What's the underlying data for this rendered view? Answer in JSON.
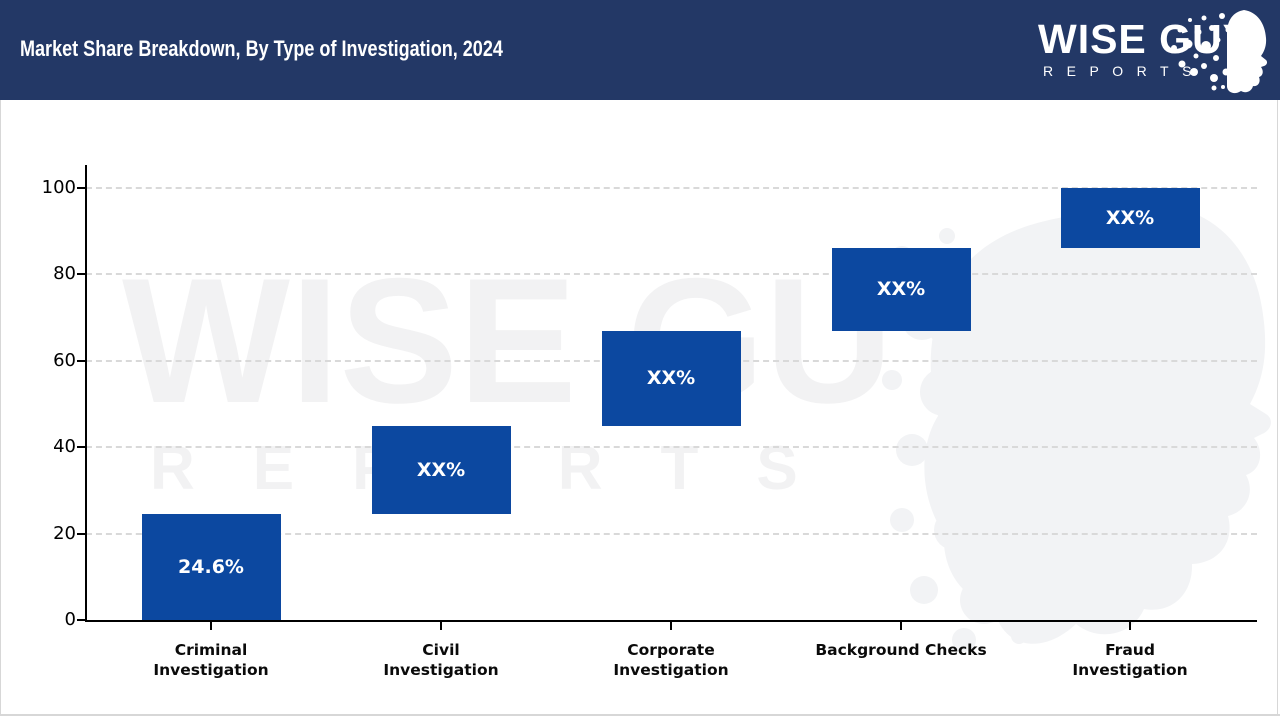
{
  "header": {
    "title": "Market Share Breakdown, By Type of Investigation, 2024",
    "logo": {
      "line1": "WISE GUY",
      "line2": "REPORTS"
    }
  },
  "watermark": {
    "line1": "WISE GUY",
    "line2": "REPORTS"
  },
  "chart_data": {
    "type": "bar",
    "subtype": "waterfall",
    "title": "Market Share Breakdown, By Type of Investigation, 2024",
    "categories": [
      "Criminal Investigation",
      "Civil Investigation",
      "Corporate Investigation",
      "Background Checks",
      "Fraud Investigation"
    ],
    "category_lines": [
      [
        "Criminal",
        "Investigation"
      ],
      [
        "Civil",
        "Investigation"
      ],
      [
        "Corporate",
        "Investigation"
      ],
      [
        "Background Checks"
      ],
      [
        "Fraud",
        "Investigation"
      ]
    ],
    "segments": [
      {
        "category": "Criminal Investigation",
        "start": 0,
        "end": 24.6,
        "label": "24.6%"
      },
      {
        "category": "Civil Investigation",
        "start": 24.6,
        "end": 45,
        "label": "XX%"
      },
      {
        "category": "Corporate Investigation",
        "start": 45,
        "end": 67,
        "label": "XX%"
      },
      {
        "category": "Background Checks",
        "start": 67,
        "end": 86.2,
        "label": "XX%"
      },
      {
        "category": "Fraud Investigation",
        "start": 86.2,
        "end": 100,
        "label": "XX%"
      }
    ],
    "xlabel": "",
    "ylabel": "",
    "ylim": [
      0,
      100
    ],
    "yticks": [
      0,
      20,
      40,
      60,
      80,
      100
    ],
    "grid": "horizontal-dashed",
    "legend": "none",
    "bar_color": "#0c48a0",
    "bar_label_color": "#ffffff",
    "grid_color": "#d9d9d9",
    "axis_color": "#000000",
    "tick_label_color": "#000000"
  },
  "colors": {
    "header_bg": "#233866",
    "page_bg": "#ffffff",
    "watermark": "#f2f2f3",
    "border": "#d7d7d7"
  }
}
